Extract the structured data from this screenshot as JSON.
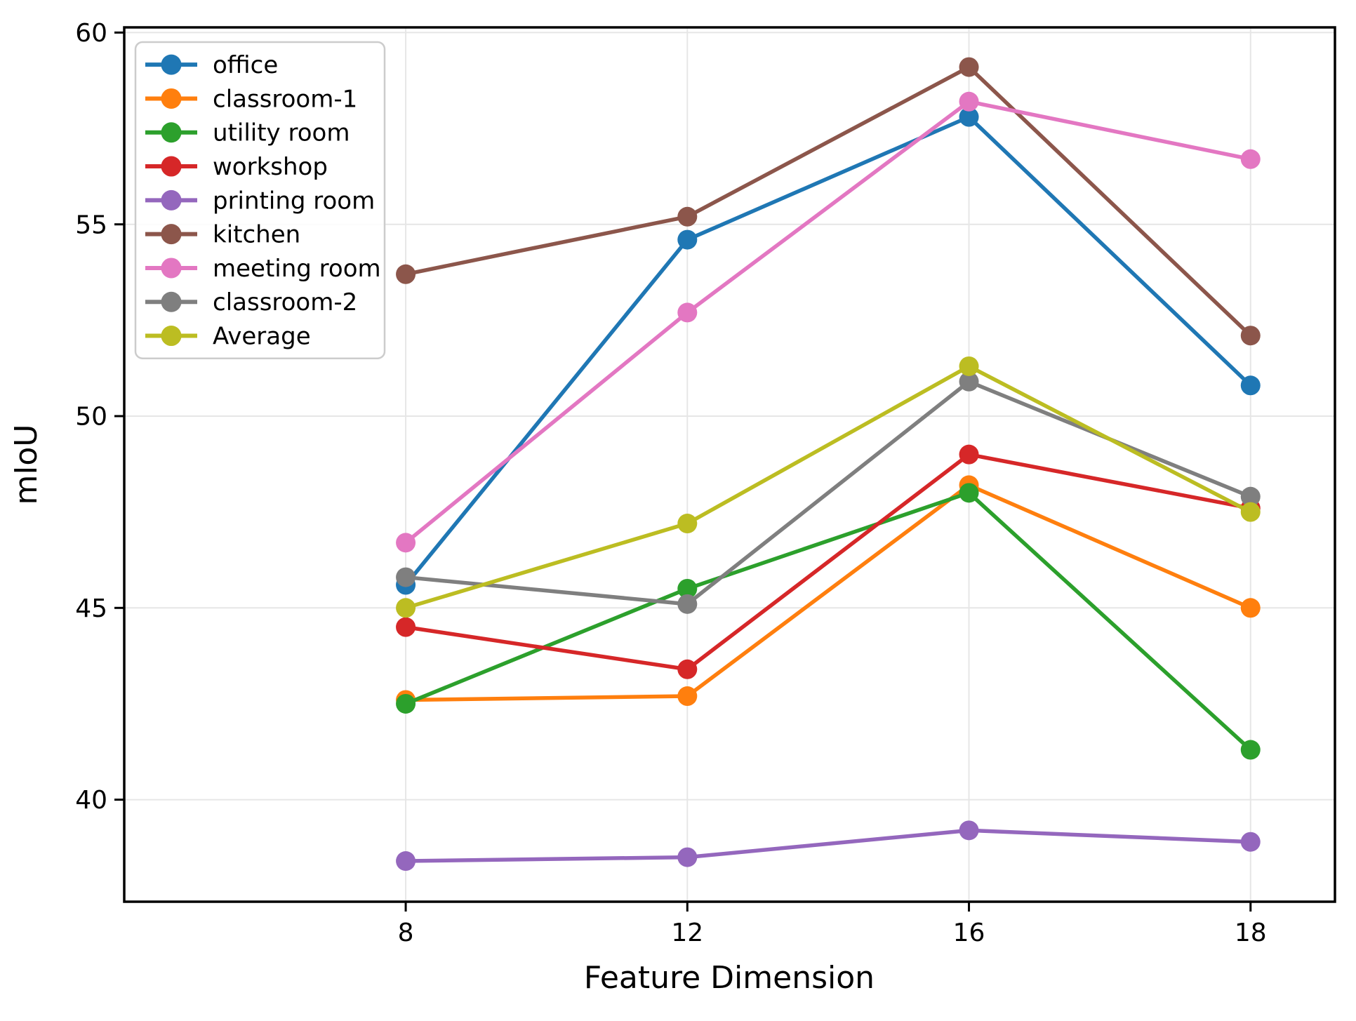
{
  "chart_data": {
    "type": "line",
    "title": "",
    "xlabel": "Feature Dimension",
    "ylabel": "mIoU",
    "categories": [
      "8",
      "12",
      "16",
      "18"
    ],
    "x_values": [
      8,
      12,
      16,
      18
    ],
    "y_ticks": [
      40,
      45,
      50,
      55,
      60
    ],
    "ylim": [
      37.3,
      60.2
    ],
    "grid": true,
    "grid_color": "#e6e6e6",
    "legend_position": "upper left",
    "series": [
      {
        "name": "office",
        "color": "#1f77b4",
        "values": [
          45.6,
          54.6,
          57.8,
          50.8
        ]
      },
      {
        "name": "classroom-1",
        "color": "#ff7f0e",
        "values": [
          42.6,
          42.7,
          48.2,
          45.0
        ]
      },
      {
        "name": "utility room",
        "color": "#2ca02c",
        "values": [
          42.5,
          45.5,
          48.0,
          41.3
        ]
      },
      {
        "name": "workshop",
        "color": "#d62728",
        "values": [
          44.5,
          43.4,
          49.0,
          47.6
        ]
      },
      {
        "name": "printing room",
        "color": "#9467bd",
        "values": [
          38.4,
          38.5,
          39.2,
          38.9
        ]
      },
      {
        "name": "kitchen",
        "color": "#8c564b",
        "values": [
          53.7,
          55.2,
          59.1,
          52.1
        ]
      },
      {
        "name": "meeting room",
        "color": "#e377c2",
        "values": [
          46.7,
          52.7,
          58.2,
          56.7
        ]
      },
      {
        "name": "classroom-2",
        "color": "#7f7f7f",
        "values": [
          45.8,
          45.1,
          50.9,
          47.9
        ]
      },
      {
        "name": "Average",
        "color": "#bcbd22",
        "values": [
          45.0,
          47.2,
          51.3,
          47.5
        ]
      }
    ]
  }
}
